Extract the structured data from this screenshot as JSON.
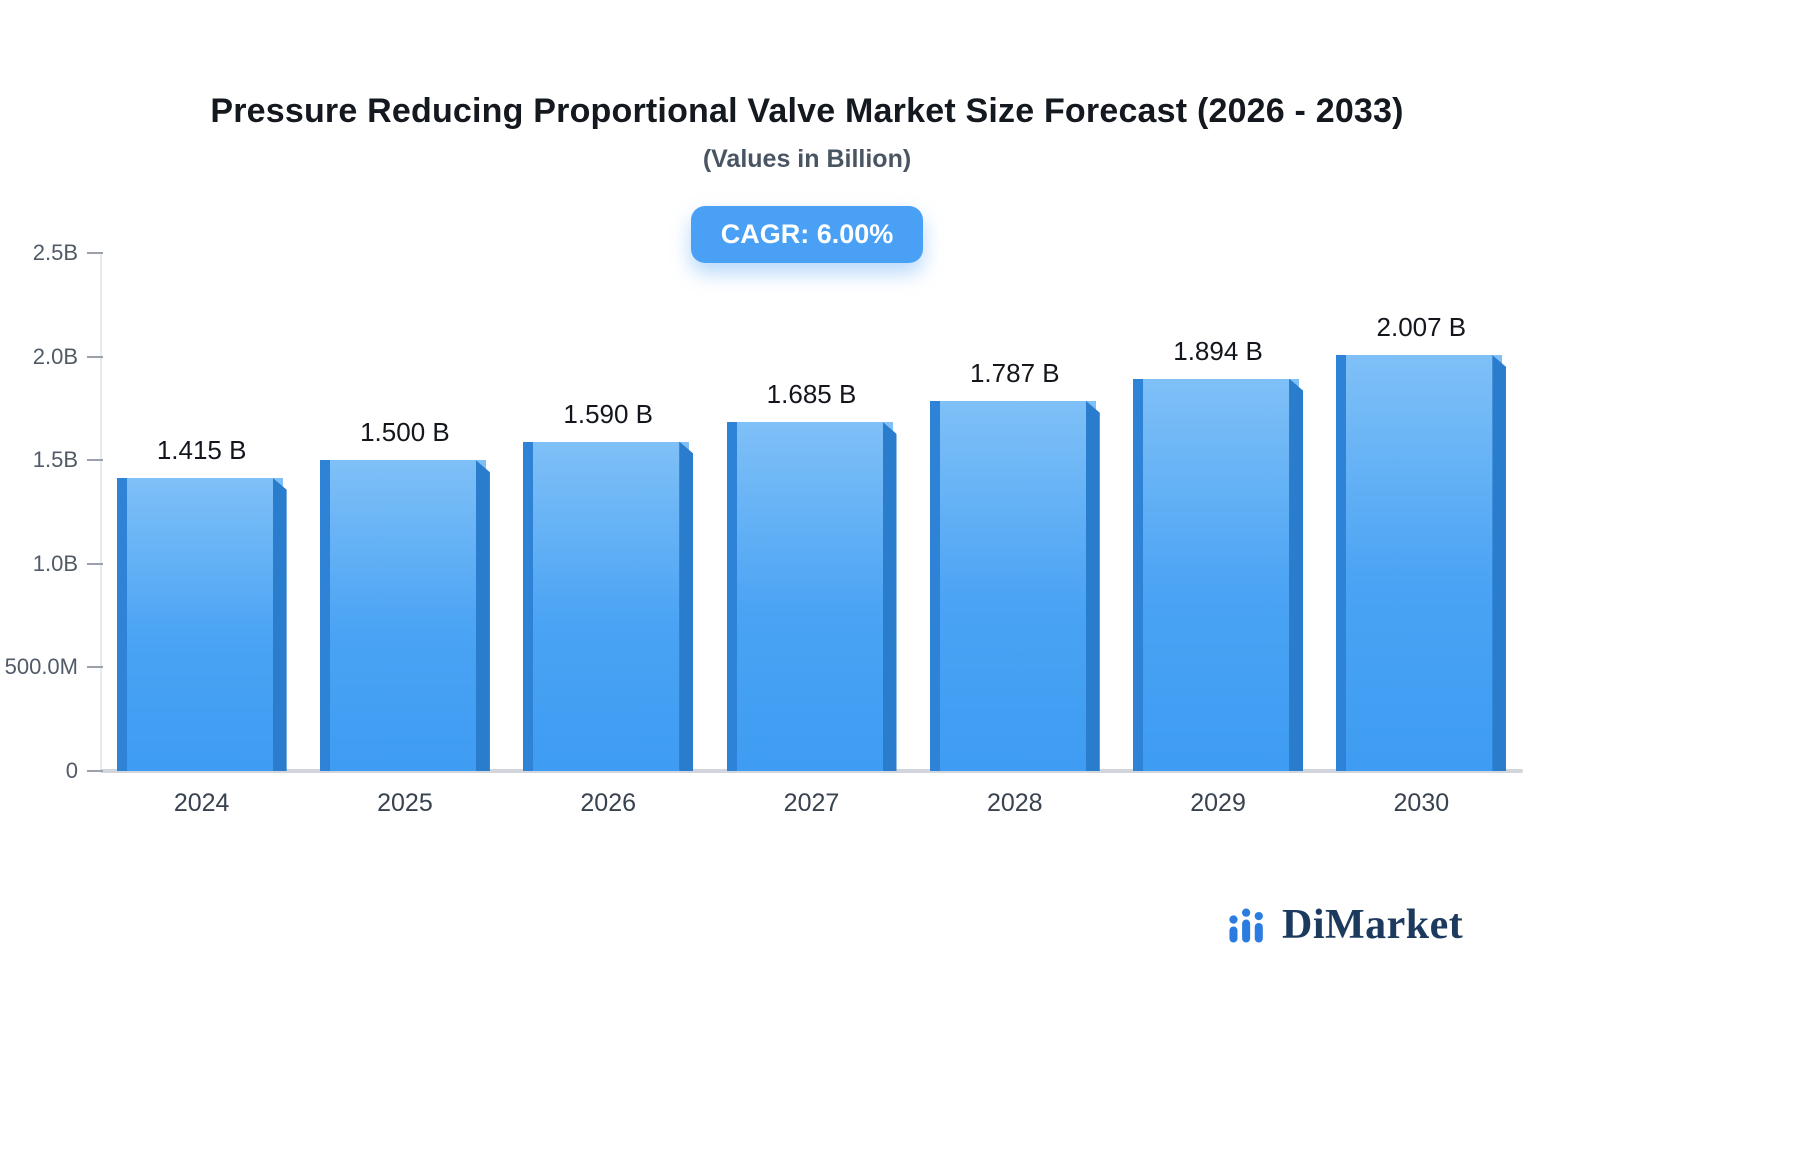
{
  "chart_data": {
    "type": "bar",
    "title": "Pressure Reducing Proportional Valve Market Size Forecast (2026 - 2033)",
    "subtitle": "(Values in Billion)",
    "badge_label": "CAGR: 6.00%",
    "categories": [
      "2024",
      "2025",
      "2026",
      "2027",
      "2028",
      "2029",
      "2030"
    ],
    "values": [
      1.415,
      1.5,
      1.59,
      1.685,
      1.787,
      1.894,
      2.007
    ],
    "value_labels": [
      "1.415 B",
      "1.500 B",
      "1.590 B",
      "1.685 B",
      "1.787 B",
      "1.894 B",
      "2.007 B"
    ],
    "yticks": [
      {
        "label": "2.5B",
        "value": 2.5
      },
      {
        "label": "2.0B",
        "value": 2.0
      },
      {
        "label": "1.5B",
        "value": 1.5
      },
      {
        "label": "1.0B",
        "value": 1.0
      },
      {
        "label": "500.0M",
        "value": 0.5
      },
      {
        "label": "0",
        "value": 0
      }
    ],
    "ylim": [
      0,
      2.5
    ],
    "legend": "none",
    "grid": "off",
    "colors": {
      "bar_top": "#7fc0f7",
      "bar_mid": "#4aa3f4",
      "bar_bottom": "#3e9cf2",
      "bar_edge": "#2f83d6",
      "bar_side": "#2a7ccd",
      "badge_bg": "#49a0f5"
    }
  },
  "logo": {
    "text": "DiMarket",
    "icon": "bar-chart-icon",
    "icon_color": "#2b7ce0"
  }
}
